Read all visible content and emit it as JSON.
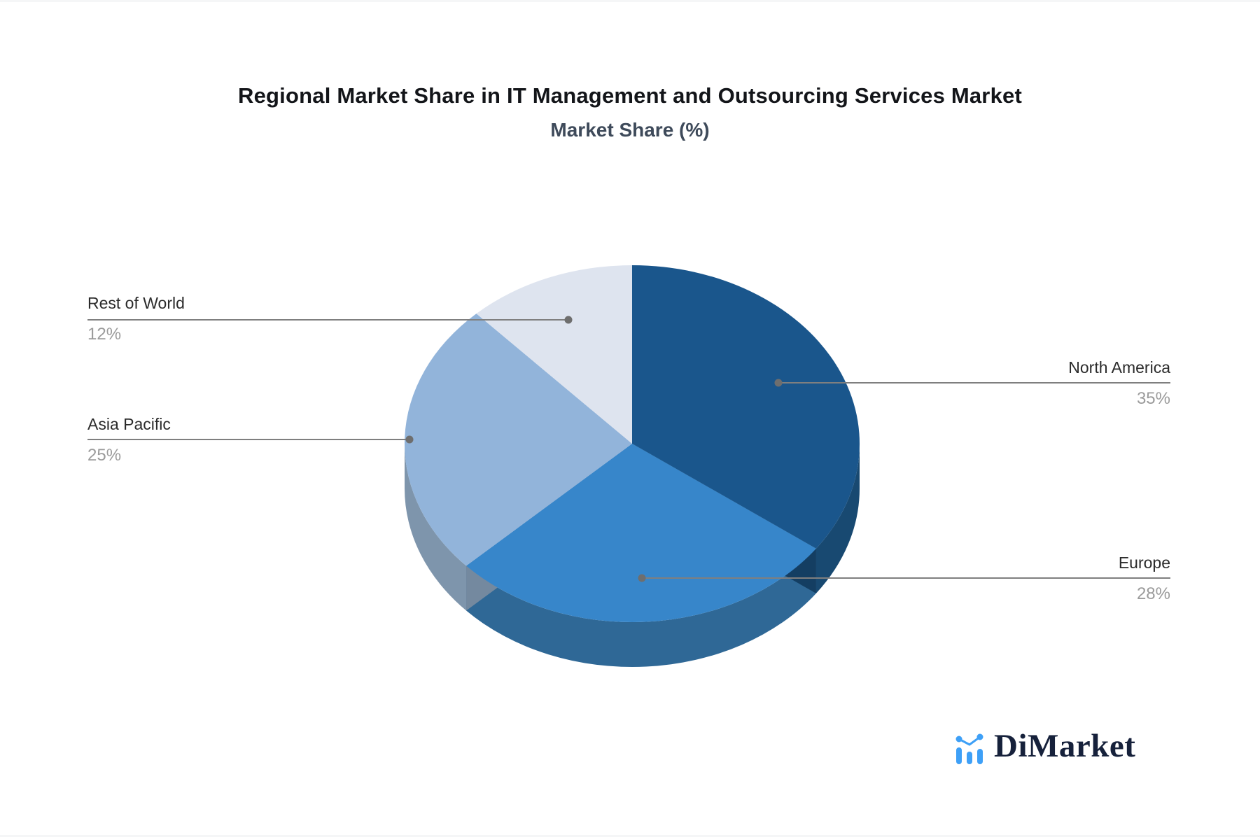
{
  "header": {
    "title": "Regional Market Share in IT Management and Outsourcing Services Market",
    "subtitle": "Market Share (%)"
  },
  "chart_data": {
    "type": "pie",
    "title": "Regional Market Share in IT Management and Outsourcing Services Market",
    "subtitle": "Market Share (%)",
    "unit": "%",
    "effect": "3d",
    "start_angle_deg": 0,
    "direction": "clockwise",
    "legend_position": "none",
    "categories": [
      "North America",
      "Europe",
      "Asia Pacific",
      "Rest of World"
    ],
    "values": [
      35,
      28,
      25,
      12
    ],
    "slices": [
      {
        "label": "North America",
        "value": 35,
        "pct_label": "35%",
        "color": "#1A568C",
        "side_color": "#184971",
        "cut_color": "#143E62"
      },
      {
        "label": "Europe",
        "value": 28,
        "pct_label": "28%",
        "color": "#3786CA",
        "side_color": "#2F6896",
        "cut_color": "#2A5C85"
      },
      {
        "label": "Asia Pacific",
        "value": 25,
        "pct_label": "25%",
        "color": "#92B4DA",
        "side_color": "#7E95AC",
        "cut_color": "#74899F"
      },
      {
        "label": "Rest of World",
        "value": 12,
        "pct_label": "12%",
        "color": "#DEE4EF",
        "side_color": "#C3CDDC",
        "cut_color": "#B8C2D1"
      }
    ],
    "label_style": {
      "name_color": "#2B2B2B",
      "pct_color": "#9B9B9B",
      "line_color": "#7F7F7F",
      "dot_color": "#6E6E6E"
    }
  },
  "branding": {
    "logo_text": "DiMarket",
    "logo_icon": "bar-chart-trend-icon",
    "logo_icon_color": "#3EA0F7",
    "logo_text_color": "#16213B"
  }
}
